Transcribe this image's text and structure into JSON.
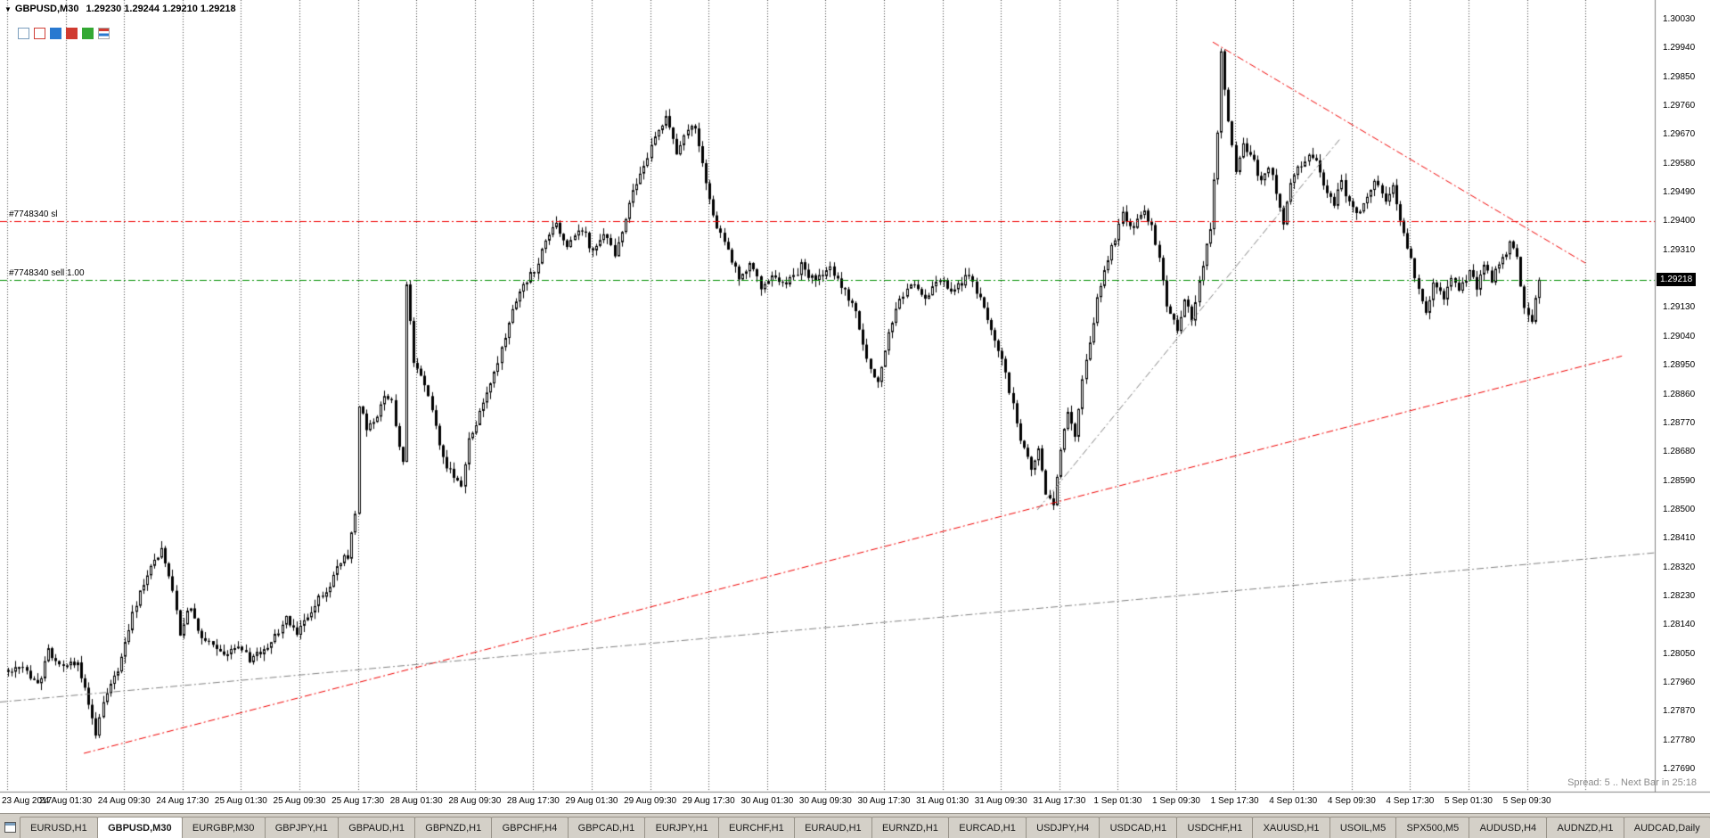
{
  "header": {
    "dropdown_arrow": "▼",
    "symbol_period": "GBPUSD,M30",
    "ohlc": "1.29230 1.29244 1.29210 1.29218"
  },
  "toolbar": {
    "swatches": [
      {
        "name": "swatch-white-blue-outline",
        "style": "solid",
        "fill": "#ffffff",
        "border": "#7b9ebd"
      },
      {
        "name": "swatch-white-red-outline",
        "style": "solid",
        "fill": "#ffffff",
        "border": "#d04038"
      },
      {
        "name": "swatch-blue",
        "style": "solid",
        "fill": "#2979d0",
        "border": "#2979d0"
      },
      {
        "name": "swatch-red",
        "style": "solid",
        "fill": "#d03a30",
        "border": "#d03a30"
      },
      {
        "name": "swatch-green",
        "style": "solid",
        "fill": "#33a833",
        "border": "#33a833"
      },
      {
        "name": "swatch-striped-red-blue",
        "style": "striped",
        "fill": "striped",
        "border": "#a8a8a8"
      }
    ]
  },
  "chart_data": {
    "type": "candlestick",
    "symbol": "GBPUSD",
    "timeframe": "M30",
    "title": "GBPUSD,M30",
    "ohlc_current": {
      "open": 1.2923,
      "high": 1.29244,
      "low": 1.2921,
      "close": 1.29218
    },
    "current_price": "1.29218",
    "ylim": [
      1.2769,
      1.3003
    ],
    "y_tick_step": 0.0009,
    "grid": "vertical-dotted",
    "price_labels": [
      "1.30030",
      "1.29940",
      "1.29850",
      "1.29760",
      "1.29670",
      "1.29580",
      "1.29490",
      "1.29400",
      "1.29310",
      "1.29220",
      "1.29130",
      "1.29040",
      "1.28950",
      "1.28860",
      "1.28770",
      "1.28680",
      "1.28590",
      "1.28500",
      "1.28410",
      "1.28320",
      "1.28230",
      "1.28140",
      "1.28050",
      "1.27960",
      "1.27870",
      "1.27780",
      "1.27690"
    ],
    "time_labels": [
      "23 Aug 2017",
      "24 Aug 01:30",
      "24 Aug 09:30",
      "24 Aug 17:30",
      "25 Aug 01:30",
      "25 Aug 09:30",
      "25 Aug 17:30",
      "28 Aug 01:30",
      "28 Aug 09:30",
      "28 Aug 17:30",
      "29 Aug 01:30",
      "29 Aug 09:30",
      "29 Aug 17:30",
      "30 Aug 01:30",
      "30 Aug 09:30",
      "30 Aug 17:30",
      "31 Aug 01:30",
      "31 Aug 09:30",
      "31 Aug 17:30",
      "1 Sep 01:30",
      "1 Sep 09:30",
      "1 Sep 17:30",
      "4 Sep 01:30",
      "4 Sep 09:30",
      "4 Sep 17:30",
      "5 Sep 01:30",
      "5 Sep 09:30"
    ],
    "candles_per_label": 16,
    "candle_count": 420,
    "candle_noise": 0.00013,
    "wick_noise": 0.00022,
    "close_path": [
      [
        0,
        1.28
      ],
      [
        3,
        1.2802
      ],
      [
        8,
        1.2795
      ],
      [
        11,
        1.2806
      ],
      [
        15,
        1.28
      ],
      [
        19,
        1.2803
      ],
      [
        24,
        1.2779
      ],
      [
        27,
        1.2794
      ],
      [
        30,
        1.28
      ],
      [
        34,
        1.2818
      ],
      [
        38,
        1.283
      ],
      [
        42,
        1.2838
      ],
      [
        45,
        1.2825
      ],
      [
        47,
        1.2812
      ],
      [
        50,
        1.282
      ],
      [
        52,
        1.2812
      ],
      [
        55,
        1.2808
      ],
      [
        59,
        1.2804
      ],
      [
        63,
        1.2807
      ],
      [
        66,
        1.2803
      ],
      [
        70,
        1.2806
      ],
      [
        73,
        1.281
      ],
      [
        76,
        1.2817
      ],
      [
        79,
        1.2811
      ],
      [
        82,
        1.2817
      ],
      [
        85,
        1.2822
      ],
      [
        88,
        1.2827
      ],
      [
        90,
        1.2832
      ],
      [
        93,
        1.2836
      ],
      [
        95,
        1.2848
      ],
      [
        96,
        1.2882
      ],
      [
        98,
        1.2876
      ],
      [
        101,
        1.288
      ],
      [
        103,
        1.2886
      ],
      [
        105,
        1.2884
      ],
      [
        107,
        1.287
      ],
      [
        108,
        1.2866
      ],
      [
        109,
        1.292
      ],
      [
        111,
        1.2896
      ],
      [
        114,
        1.289
      ],
      [
        116,
        1.288
      ],
      [
        119,
        1.2866
      ],
      [
        122,
        1.286
      ],
      [
        124,
        1.2856
      ],
      [
        126,
        1.2872
      ],
      [
        129,
        1.288
      ],
      [
        132,
        1.289
      ],
      [
        135,
        1.29
      ],
      [
        138,
        1.2912
      ],
      [
        141,
        1.292
      ],
      [
        144,
        1.2925
      ],
      [
        147,
        1.2934
      ],
      [
        150,
        1.294
      ],
      [
        153,
        1.2932
      ],
      [
        157,
        1.2938
      ],
      [
        160,
        1.293
      ],
      [
        163,
        1.2936
      ],
      [
        166,
        1.293
      ],
      [
        169,
        1.2942
      ],
      [
        172,
        1.2952
      ],
      [
        175,
        1.296
      ],
      [
        178,
        1.2968
      ],
      [
        180,
        1.2974
      ],
      [
        183,
        1.2962
      ],
      [
        185,
        1.2968
      ],
      [
        188,
        1.297
      ],
      [
        191,
        1.2952
      ],
      [
        194,
        1.2938
      ],
      [
        197,
        1.293
      ],
      [
        200,
        1.2922
      ],
      [
        203,
        1.2926
      ],
      [
        206,
        1.292
      ],
      [
        209,
        1.2924
      ],
      [
        213,
        1.292
      ],
      [
        217,
        1.2926
      ],
      [
        221,
        1.2921
      ],
      [
        225,
        1.2926
      ],
      [
        228,
        1.292
      ],
      [
        232,
        1.2912
      ],
      [
        235,
        1.2896
      ],
      [
        238,
        1.289
      ],
      [
        241,
        1.2906
      ],
      [
        244,
        1.2916
      ],
      [
        247,
        1.292
      ],
      [
        251,
        1.2916
      ],
      [
        255,
        1.2922
      ],
      [
        259,
        1.2918
      ],
      [
        263,
        1.2924
      ],
      [
        266,
        1.2916
      ],
      [
        269,
        1.2906
      ],
      [
        272,
        1.2898
      ],
      [
        275,
        1.2882
      ],
      [
        277,
        1.2872
      ],
      [
        280,
        1.2862
      ],
      [
        282,
        1.2868
      ],
      [
        284,
        1.2856
      ],
      [
        286,
        1.2852
      ],
      [
        288,
        1.2868
      ],
      [
        290,
        1.288
      ],
      [
        292,
        1.2872
      ],
      [
        294,
        1.289
      ],
      [
        296,
        1.2902
      ],
      [
        298,
        1.2916
      ],
      [
        301,
        1.2928
      ],
      [
        303,
        1.2935
      ],
      [
        305,
        1.2942
      ],
      [
        308,
        1.2938
      ],
      [
        311,
        1.2944
      ],
      [
        313,
        1.2938
      ],
      [
        315,
        1.2928
      ],
      [
        317,
        1.2914
      ],
      [
        320,
        1.2906
      ],
      [
        322,
        1.2916
      ],
      [
        324,
        1.291
      ],
      [
        326,
        1.2922
      ],
      [
        329,
        1.2938
      ],
      [
        331,
        1.2968
      ],
      [
        332,
        1.2992
      ],
      [
        334,
        1.2972
      ],
      [
        336,
        1.2956
      ],
      [
        338,
        1.2964
      ],
      [
        341,
        1.2958
      ],
      [
        343,
        1.2952
      ],
      [
        345,
        1.2958
      ],
      [
        349,
        1.294
      ],
      [
        351,
        1.2952
      ],
      [
        354,
        1.2958
      ],
      [
        356,
        1.2962
      ],
      [
        358,
        1.2958
      ],
      [
        360,
        1.2952
      ],
      [
        363,
        1.2946
      ],
      [
        365,
        1.2952
      ],
      [
        367,
        1.2946
      ],
      [
        370,
        1.2942
      ],
      [
        372,
        1.2948
      ],
      [
        374,
        1.2952
      ],
      [
        377,
        1.2946
      ],
      [
        379,
        1.2952
      ],
      [
        381,
        1.294
      ],
      [
        384,
        1.2928
      ],
      [
        386,
        1.2918
      ],
      [
        388,
        1.2912
      ],
      [
        390,
        1.292
      ],
      [
        393,
        1.2916
      ],
      [
        395,
        1.2922
      ],
      [
        397,
        1.2918
      ],
      [
        400,
        1.2924
      ],
      [
        402,
        1.292
      ],
      [
        404,
        1.2926
      ],
      [
        406,
        1.2922
      ],
      [
        409,
        1.2928
      ],
      [
        411,
        1.2934
      ],
      [
        413,
        1.2928
      ],
      [
        415,
        1.2912
      ],
      [
        417,
        1.2908
      ],
      [
        419,
        1.29218
      ]
    ],
    "colors": {
      "bull": "#ffffff",
      "bear": "#000000",
      "outline": "#000000",
      "grid": "#4a4a4a",
      "axis_text": "#000000",
      "badge_bg": "#000000",
      "badge_text": "#ffffff",
      "trend_red": "#f00000",
      "trend_gray": "#808080",
      "order_green": "#008f00"
    },
    "trendlines": [
      {
        "name": "ascending-support-red",
        "i1": 21,
        "p1": 1.2774,
        "i2": 442,
        "p2": 1.2898,
        "color": "#f00000"
      },
      {
        "name": "descending-resistance-red",
        "i1": 330,
        "p1": 1.2996,
        "i2": 432,
        "p2": 1.2927,
        "color": "#f00000"
      },
      {
        "name": "ascending-steep-gray",
        "i1": 282,
        "p1": 1.285,
        "i2": 365,
        "p2": 1.2966,
        "color": "#808080"
      },
      {
        "name": "ascending-shallow-gray",
        "i1": -2,
        "p1": 1.279,
        "i2": 455,
        "p2": 1.2837,
        "color": "#808080"
      }
    ],
    "order_lines": [
      {
        "label": "#7748340 sl",
        "price": 1.294,
        "color": "#f00000"
      },
      {
        "label": "#7748340 sell 1.00",
        "price": 1.29218,
        "color": "#008f00"
      }
    ]
  },
  "overlay": {
    "spread_text": "Spread: 5 .. Next Bar in 25:18"
  },
  "tabbar": {
    "active_tab": "GBPUSD,M30",
    "tabs": [
      "EURUSD,H1",
      "GBPUSD,M30",
      "EURGBP,M30",
      "GBPJPY,H1",
      "GBPAUD,H1",
      "GBPNZD,H1",
      "GBPCHF,H4",
      "GBPCAD,H1",
      "EURJPY,H1",
      "EURCHF,H1",
      "EURAUD,H1",
      "EURNZD,H1",
      "EURCAD,H1",
      "USDJPY,H4",
      "USDCAD,H1",
      "USDCHF,H1",
      "XAUUSD,H1",
      "USOIL,M5",
      "SPX500,M5",
      "AUDUSD,H4",
      "AUDNZD,H1",
      "AUDCAD,Daily"
    ]
  }
}
